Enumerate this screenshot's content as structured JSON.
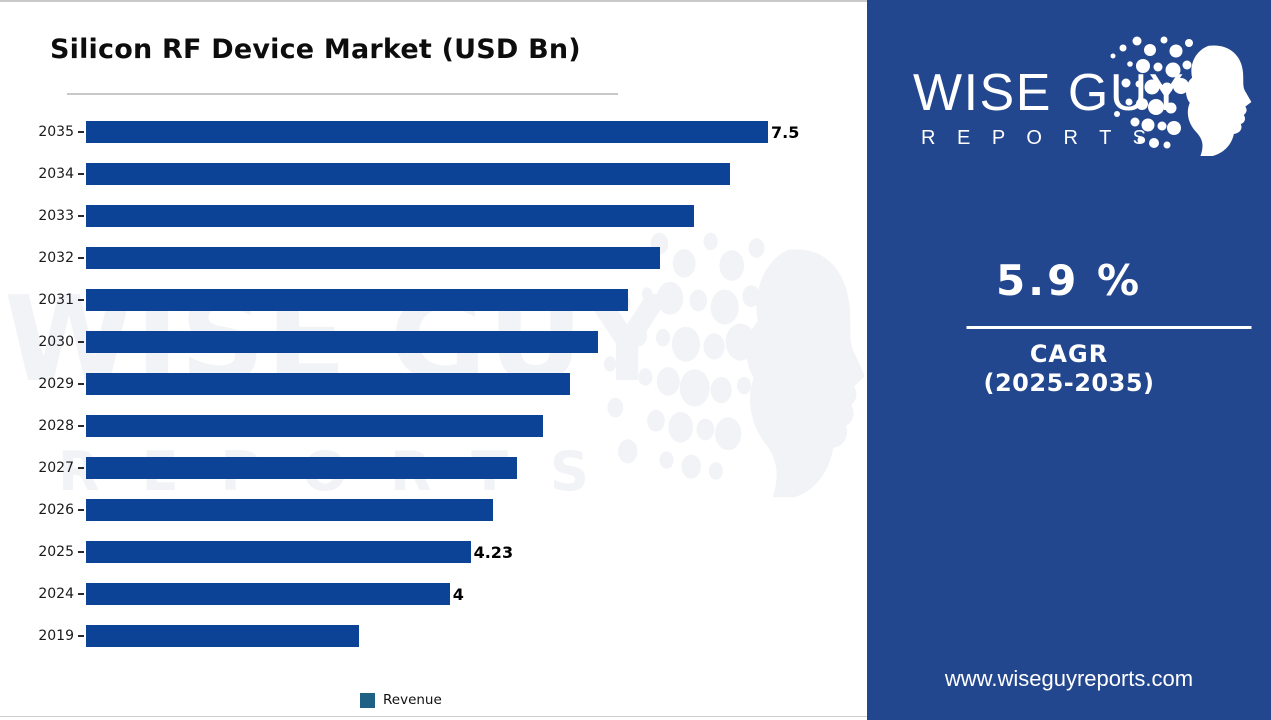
{
  "chart": {
    "title": "Silicon RF Device Market (USD Bn)",
    "legend_label": "Revenue"
  },
  "watermark": {
    "line1": "WISE GUY",
    "line2": "REPORTS"
  },
  "sidebar": {
    "logo_line1": "WISE GUY",
    "logo_line2": "R E P O R T S",
    "cagr_value": "5.9 %",
    "cagr_label": "CAGR",
    "cagr_period": "(2025-2035)",
    "website": "www.wiseguyreports.com"
  },
  "colors": {
    "bar": "#0d4397",
    "sidebar_background": "#23478e",
    "legend_marker": "#1f6185",
    "watermark": "#f2f3f6"
  },
  "chart_data": {
    "type": "bar",
    "orientation": "horizontal",
    "title": "Silicon RF Device Market (USD Bn)",
    "xlabel": "",
    "ylabel": "",
    "xlim": [
      0,
      7.5
    ],
    "grid": false,
    "legend_position": "bottom",
    "series": [
      {
        "name": "Revenue",
        "color": "#0d4397"
      }
    ],
    "categories": [
      "2035",
      "2034",
      "2033",
      "2032",
      "2031",
      "2030",
      "2029",
      "2028",
      "2027",
      "2026",
      "2025",
      "2024",
      "2019"
    ],
    "values": [
      7.5,
      7.08,
      6.69,
      6.31,
      5.96,
      5.63,
      5.32,
      5.02,
      4.74,
      4.48,
      4.23,
      4.0,
      3.0
    ],
    "data_labels": [
      "7.5",
      "",
      "",
      "",
      "",
      "",
      "",
      "",
      "",
      "",
      "4.23",
      "4",
      ""
    ]
  }
}
